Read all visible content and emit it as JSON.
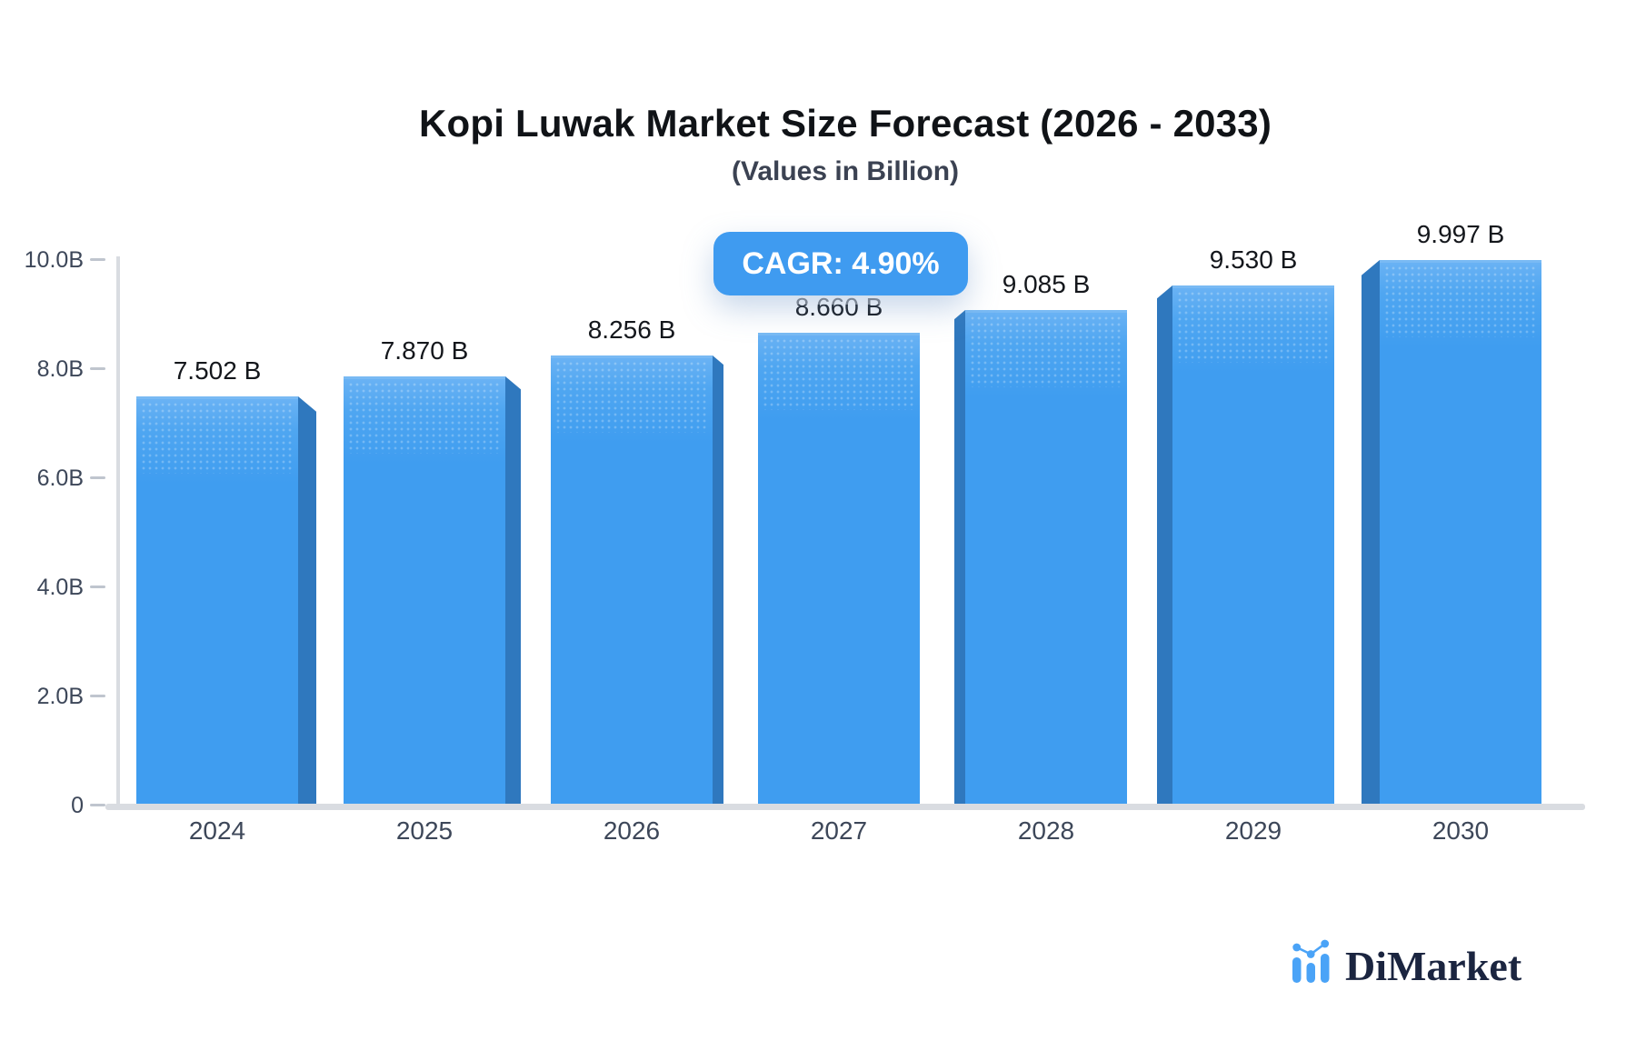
{
  "header": {
    "title": "Kopi Luwak Market Size Forecast (2026 - 2033)",
    "subtitle": "(Values in Billion)"
  },
  "badge": {
    "label": "CAGR: 4.90%"
  },
  "chart_data": {
    "type": "bar",
    "title": "Kopi Luwak Market Size Forecast (2026 - 2033)",
    "subtitle": "(Values in Billion)",
    "categories": [
      "2024",
      "2025",
      "2026",
      "2027",
      "2028",
      "2029",
      "2030"
    ],
    "values": [
      7.502,
      7.87,
      8.256,
      8.66,
      9.085,
      9.53,
      9.997
    ],
    "value_labels": [
      "7.502 B",
      "7.870 B",
      "8.256 B",
      "8.660 B",
      "9.085 B",
      "9.530 B",
      "9.997 B"
    ],
    "annotation": "CAGR: 4.90%",
    "xlabel": "",
    "ylabel": "",
    "ylim": [
      0,
      10
    ],
    "y_ticks": [
      {
        "label": "10.0B",
        "value": 10
      },
      {
        "label": "8.0B",
        "value": 8
      },
      {
        "label": "6.0B",
        "value": 6
      },
      {
        "label": "4.0B",
        "value": 4
      },
      {
        "label": "2.0B",
        "value": 2
      },
      {
        "label": "0",
        "value": 0
      }
    ],
    "grid": false,
    "legend": false,
    "bar_style": "3d-perspective-blue"
  },
  "branding": {
    "logo_text": "DiMarket"
  },
  "colors": {
    "accent": "#3F9BF0",
    "bar-face": "#3F9DF0",
    "bar-face-top": "#69B2F4",
    "bar-side": "#2F78BE",
    "axis-line": "#D9DCE1",
    "tick-dash": "#BFC5CE",
    "tick-text": "#3D4759",
    "title-text": "#101317",
    "subtitle-text": "#3B4252",
    "value-text": "#14171C",
    "badge-bg": "#3F9BF0",
    "badge-text": "#FFFFFF",
    "logo-text": "#1B2540",
    "logo-icon": "#4AA3F7",
    "bg": "#FFFFFF"
  }
}
